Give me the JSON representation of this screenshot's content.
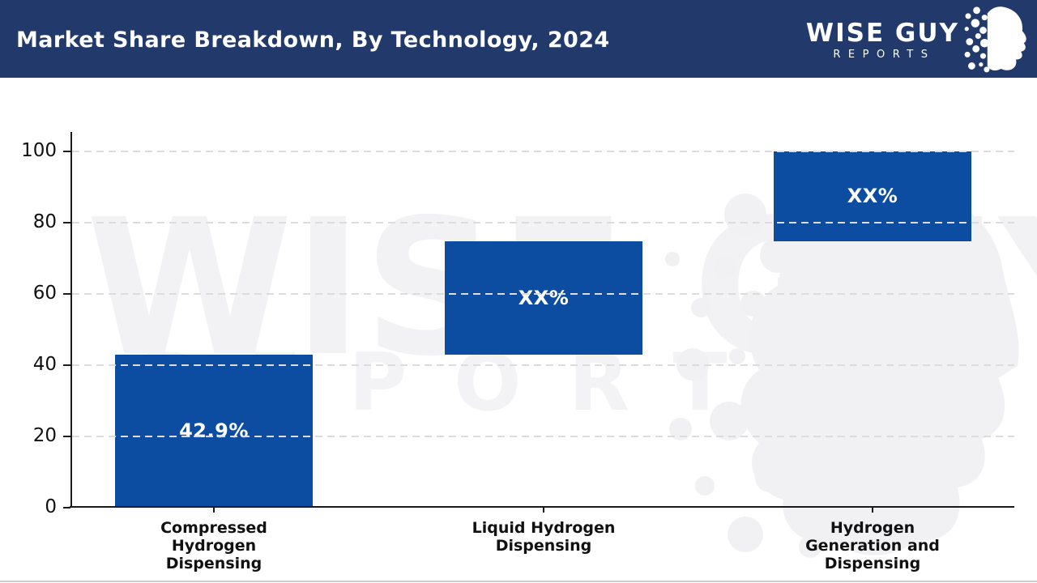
{
  "header": {
    "title": "Market Share Breakdown, By Technology, 2024",
    "bg_color": "#22396b",
    "logo": {
      "line1": "WISE GUY",
      "line2": "REPORTS"
    }
  },
  "watermark": {
    "line1": "WISE GUY",
    "line2": "REPORTS"
  },
  "chart_data": {
    "type": "bar",
    "subtype": "floating-segment-waterfall",
    "title": "Market Share Breakdown, By Technology, 2024",
    "categories": [
      "Compressed Hydrogen Dispensing",
      "Liquid Hydrogen Dispensing",
      "Hydrogen Generation and Dispensing"
    ],
    "categories_lines": [
      [
        "Compressed",
        "Hydrogen",
        "Dispensing"
      ],
      [
        "Liquid Hydrogen",
        "Dispensing"
      ],
      [
        "Hydrogen",
        "Generation and",
        "Dispensing"
      ]
    ],
    "segments": [
      {
        "start": 0,
        "end": 42.9,
        "label": "42.9%"
      },
      {
        "start": 42.9,
        "end": 74.6,
        "label": "XX%"
      },
      {
        "start": 74.6,
        "end": 100,
        "label": "XX%"
      }
    ],
    "y_ticks": [
      0,
      20,
      40,
      60,
      80,
      100
    ],
    "ylim": [
      0,
      105
    ],
    "xlabel": "",
    "ylabel": "",
    "grid": "horizontal-dashed",
    "legend": "none",
    "bar_color": "#0c4da1",
    "bar_label_color": "#ffffff",
    "axis_color": "#1a1a1a",
    "gridline_color": "#dcdcdc"
  }
}
